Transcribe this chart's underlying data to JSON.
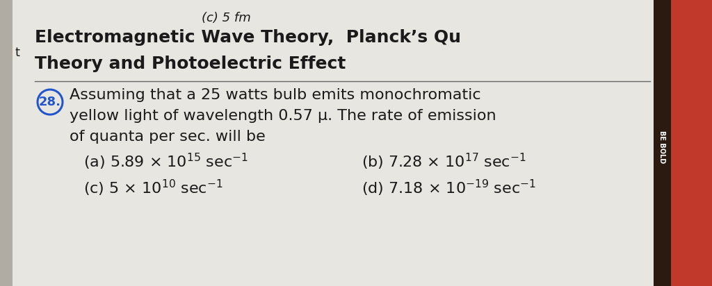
{
  "bg_color": "#e8e6e0",
  "right_spine_color": "#1a0a05",
  "right_red_color": "#c0392b",
  "text_color": "#1a1a1a",
  "line1_text": "(c) 5 fm",
  "header1_text": "Electromagnetic Wave Theory,  Planck’s Qu",
  "header2_text": "Theory and Photoelectric Effect",
  "q_line1": "Assuming that a 25 watts bulb emits monochromatic",
  "q_line2": "yellow light of wavelength 0.57 μ. The rate of emission",
  "q_line3": "of quanta per sec. will be",
  "opt_a": "(a) 5.89 × 10$^{15}$ sec$^{-1}$",
  "opt_b": "(b) 7.28 × 10$^{17}$ sec$^{-1}$",
  "opt_c": "(c) 5 × 10$^{10}$ sec$^{-1}$",
  "opt_d": "(d) 7.18 × 10$^{-19}$ sec$^{-1}$",
  "left_strip_color": "#c8c4bc"
}
